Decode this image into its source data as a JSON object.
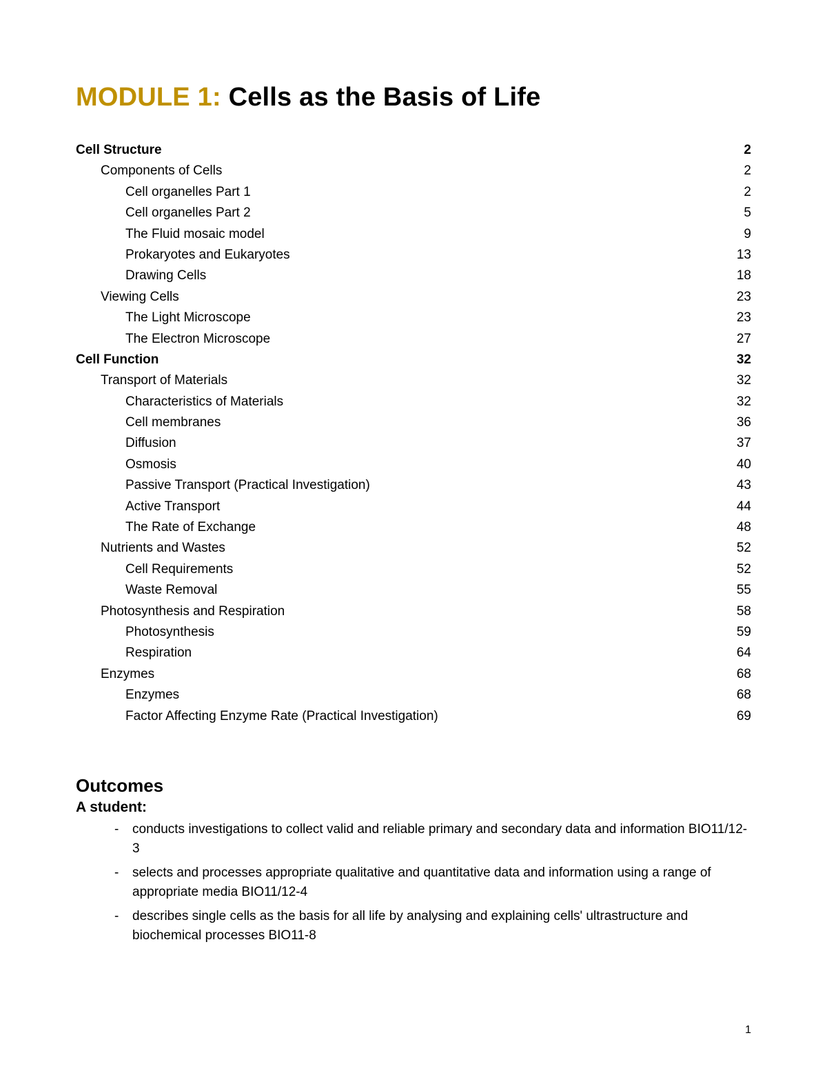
{
  "title": {
    "module_label": "MODULE 1:",
    "module_name": " Cells as the Basis of Life",
    "accent_color": "#bf9000"
  },
  "toc": [
    {
      "level": 0,
      "label": "Cell Structure",
      "page": "2"
    },
    {
      "level": 1,
      "label": "Components of Cells",
      "page": "2"
    },
    {
      "level": 2,
      "label": "Cell organelles Part 1",
      "page": "2"
    },
    {
      "level": 2,
      "label": "Cell organelles Part 2",
      "page": "5"
    },
    {
      "level": 2,
      "label": "The Fluid mosaic model",
      "page": "9"
    },
    {
      "level": 2,
      "label": "Prokaryotes and Eukaryotes",
      "page": "13"
    },
    {
      "level": 2,
      "label": "Drawing Cells",
      "page": "18"
    },
    {
      "level": 1,
      "label": "Viewing Cells",
      "page": "23"
    },
    {
      "level": 2,
      "label": "The Light Microscope",
      "page": "23"
    },
    {
      "level": 2,
      "label": "The Electron Microscope",
      "page": "27"
    },
    {
      "level": 0,
      "label": "Cell Function",
      "page": "32"
    },
    {
      "level": 1,
      "label": "Transport of Materials",
      "page": "32"
    },
    {
      "level": 2,
      "label": "Characteristics of Materials",
      "page": "32"
    },
    {
      "level": 2,
      "label": "Cell membranes",
      "page": "36"
    },
    {
      "level": 2,
      "label": "Diffusion",
      "page": "37"
    },
    {
      "level": 2,
      "label": "Osmosis",
      "page": "40"
    },
    {
      "level": 2,
      "label": "Passive Transport (Practical Investigation)",
      "page": "43"
    },
    {
      "level": 2,
      "label": "Active Transport",
      "page": "44"
    },
    {
      "level": 2,
      "label": "The Rate of Exchange",
      "page": "48"
    },
    {
      "level": 1,
      "label": "Nutrients and Wastes",
      "page": "52"
    },
    {
      "level": 2,
      "label": "Cell Requirements",
      "page": "52"
    },
    {
      "level": 2,
      "label": "Waste Removal",
      "page": "55"
    },
    {
      "level": 1,
      "label": "Photosynthesis and Respiration",
      "page": "58"
    },
    {
      "level": 2,
      "label": "Photosynthesis",
      "page": "59"
    },
    {
      "level": 2,
      "label": "Respiration",
      "page": "64"
    },
    {
      "level": 1,
      "label": "Enzymes",
      "page": "68"
    },
    {
      "level": 2,
      "label": "Enzymes",
      "page": "68"
    },
    {
      "level": 2,
      "label": "Factor Affecting Enzyme Rate (Practical Investigation)",
      "page": "69"
    }
  ],
  "outcomes": {
    "heading": "Outcomes",
    "subhead": "A student:",
    "items": [
      "conducts investigations to collect valid and reliable primary and secondary data and information BIO11/12-3",
      "selects and processes appropriate qualitative and quantitative data and information using a range of appropriate media BIO11/12-4",
      "describes single cells as the basis for all life by analysing and explaining cells' ultrastructure and biochemical processes BIO11-8"
    ]
  },
  "page_number": "1"
}
